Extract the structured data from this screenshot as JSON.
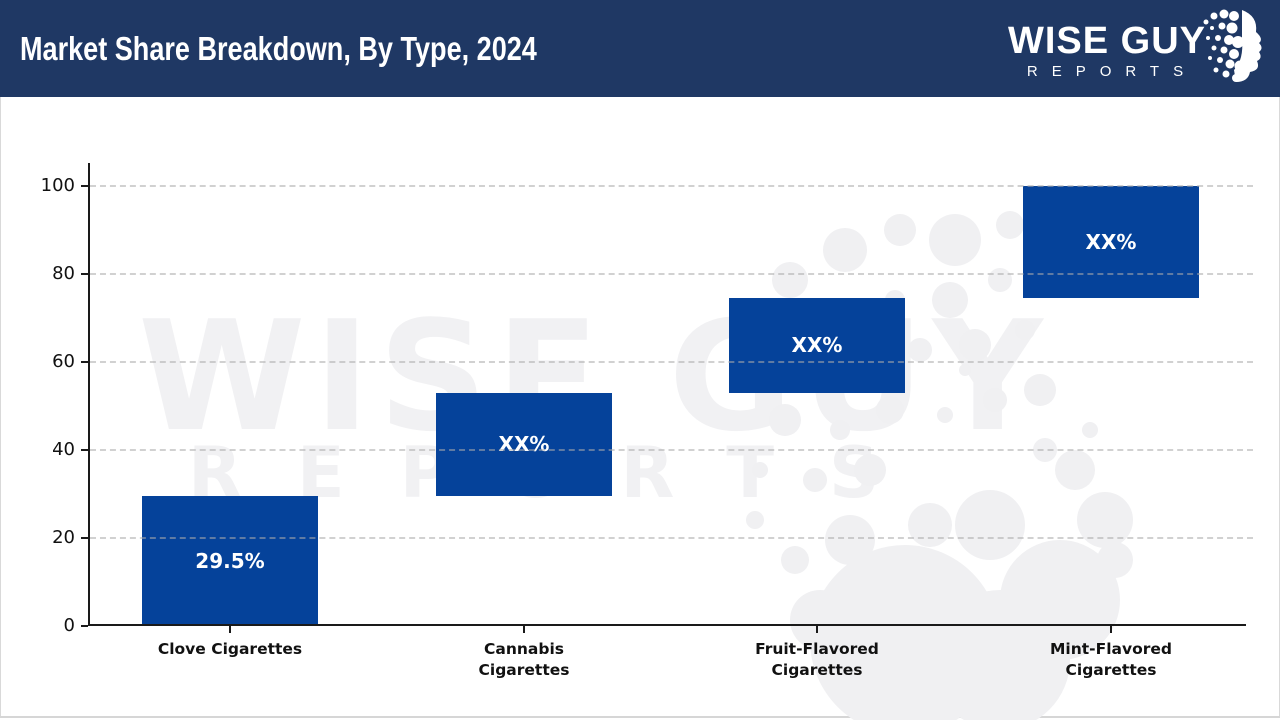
{
  "header": {
    "title": "Market Share Breakdown, By Type, 2024",
    "logo": {
      "line1": "WISE GUY",
      "line2": "REPORTS"
    }
  },
  "watermark": {
    "line1": "WISE GUY",
    "line2": "REPORTS"
  },
  "colors": {
    "header_background": "#1F3864",
    "bar_blue": "#05429A",
    "gridline_gray": "#d9d9d9",
    "watermark_gray": "#f1f1f3"
  },
  "chart_data": {
    "type": "bar",
    "subtype": "waterfall",
    "title": "Market Share Breakdown, By Type, 2024",
    "unit": "%",
    "categories": [
      "Clove Cigarettes",
      "Cannabis\nCigarettes",
      "Fruit-Flavored\nCigarettes",
      "Mint-Flavored\nCigarettes"
    ],
    "bar_labels": [
      "29.5%",
      "XX%",
      "XX%",
      "XX%"
    ],
    "segments": [
      {
        "category": "Clove Cigarettes",
        "start": 0,
        "end": 29.5,
        "value_label": "29.5%"
      },
      {
        "category": "Cannabis Cigarettes",
        "start": 29.5,
        "end": 53,
        "value_label": "XX%"
      },
      {
        "category": "Fruit-Flavored Cigarettes",
        "start": 53,
        "end": 74.5,
        "value_label": "XX%"
      },
      {
        "category": "Mint-Flavored Cigarettes",
        "start": 74.5,
        "end": 100,
        "value_label": "XX%"
      }
    ],
    "yticks": [
      0,
      20,
      40,
      60,
      80,
      100
    ],
    "ylim": [
      0,
      100
    ],
    "grid": "dashed horizontal, drawn over bars",
    "legend": "none"
  }
}
